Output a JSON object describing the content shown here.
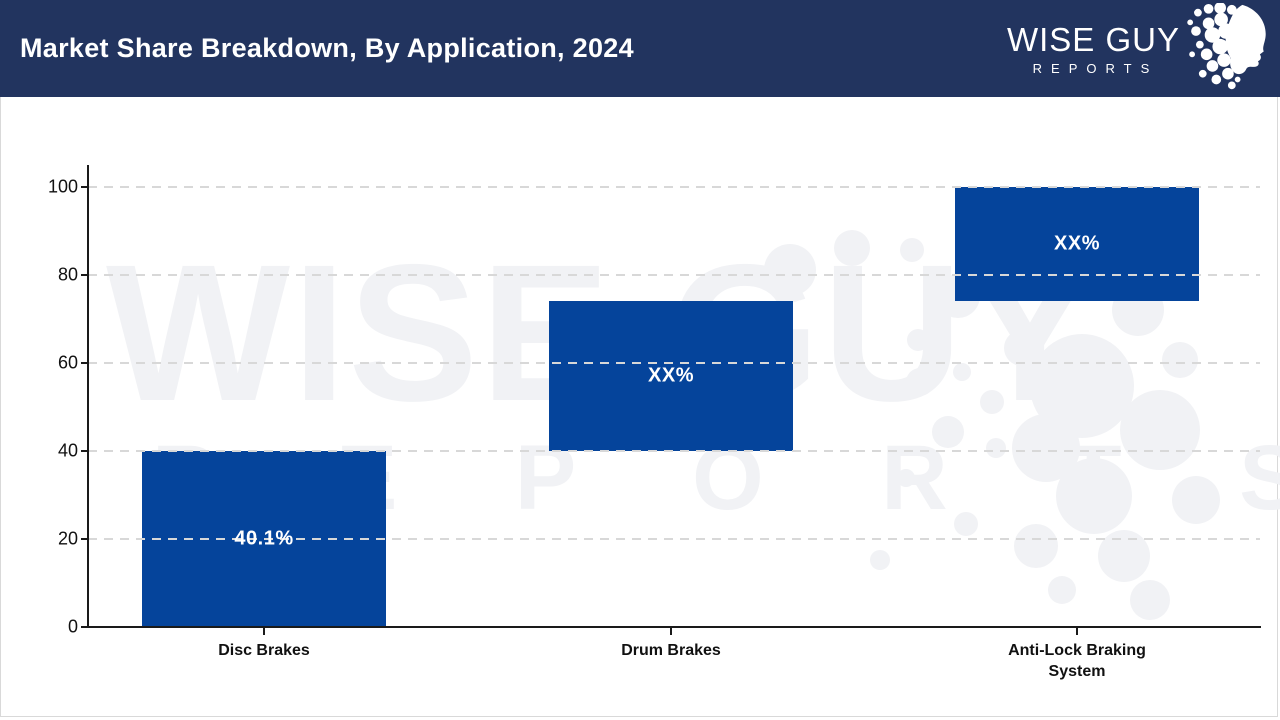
{
  "header": {
    "title": "Market Share Breakdown, By Application, 2024",
    "logo": {
      "line1": "WISE GUY",
      "line2": "REPORTS"
    }
  },
  "watermark": {
    "line1": "WISE GUY",
    "line2": "R E P O R T S"
  },
  "colors": {
    "header_bg": "#22345f",
    "bar": "#05449b",
    "bar_label_text": "#ffffff",
    "gridline": "#d8d8d8",
    "axis": "#1a1a1a",
    "watermark": "#f1f2f5"
  },
  "chart_data": {
    "type": "bar",
    "subtype": "floating-cumulative",
    "title": "Market Share Breakdown, By Application, 2024",
    "categories": [
      "Disc Brakes",
      "Drum Brakes",
      "Anti-Lock Braking System"
    ],
    "bars": [
      {
        "category": "Disc Brakes",
        "start": 0,
        "end": 40.1,
        "label": "40.1%"
      },
      {
        "category": "Drum Brakes",
        "start": 40.1,
        "end": 74.1,
        "label": "XX%"
      },
      {
        "category": "Anti-Lock Braking System",
        "start": 74.1,
        "end": 100,
        "label": "XX%"
      }
    ],
    "yticks": [
      0,
      20,
      40,
      60,
      80,
      100
    ],
    "ylim": [
      0,
      100
    ],
    "xlabel": "",
    "ylabel": "",
    "grid": "dashed-horizontal",
    "legend": "none"
  }
}
